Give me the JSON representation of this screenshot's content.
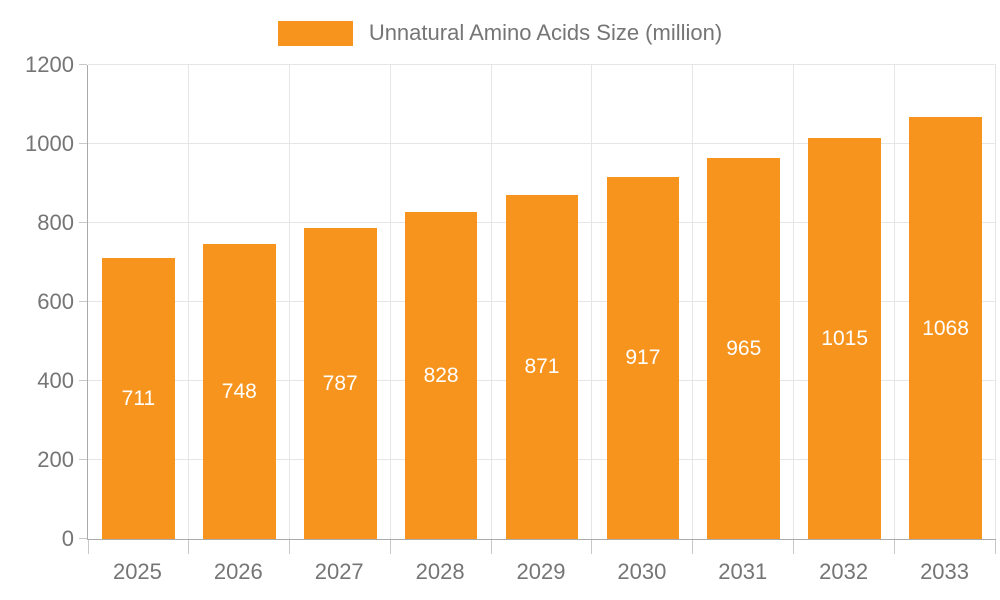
{
  "page": {
    "background": "#ffffff"
  },
  "legend": {
    "label": "Unnatural Amino Acids Size (million)",
    "swatch_color": "#F7941E",
    "text_color": "#757575"
  },
  "chart_data": {
    "type": "bar",
    "title": "Unnatural Amino Acids Size (million)",
    "series_name": "Unnatural Amino Acids Size (million)",
    "categories": [
      "2025",
      "2026",
      "2027",
      "2028",
      "2029",
      "2030",
      "2031",
      "2032",
      "2033"
    ],
    "values": [
      711,
      748,
      787,
      828,
      871,
      917,
      965,
      1015,
      1068
    ],
    "value_labels": [
      "711",
      "748",
      "787",
      "828",
      "871",
      "917",
      "965",
      "1015",
      "1068"
    ],
    "xlabel": "",
    "ylabel": "",
    "ylim": [
      0,
      1200
    ],
    "yticks": [
      0,
      200,
      400,
      600,
      800,
      1000,
      1200
    ],
    "grid": true,
    "legend_position": "top-center",
    "bar_color": "#F7941E",
    "value_label_color": "#ffffff",
    "axis_text_color": "#757575",
    "grid_color": "#E6E6E6",
    "axis_line_color": "#ABABAB",
    "tick_color": "#C9C9C9",
    "bar_width_fraction": 0.72
  }
}
